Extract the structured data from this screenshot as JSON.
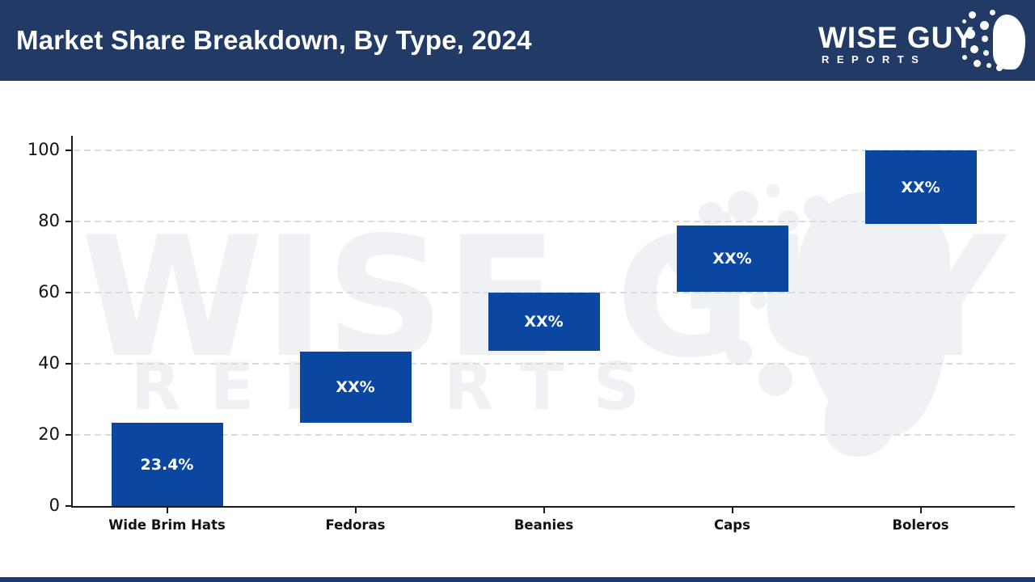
{
  "header": {
    "title": "Market Share Breakdown, By Type, 2024",
    "brand": {
      "line1": "WISE GUY",
      "line2": "REPORTS"
    }
  },
  "watermark": {
    "line1": "WISE GUY",
    "line2": "REPORTS"
  },
  "colors": {
    "header_bg": "#213A66",
    "footer_bg": "#213A66",
    "bar_blue": "#0B47A0",
    "grid_gray": "#DCDCDC",
    "axis_black": "#1A1A1A",
    "watermark_gray": "#F0F1F4",
    "bar_label_white": "#FFFFFF"
  },
  "chart_data": {
    "type": "bar",
    "subtype": "waterfall",
    "title": "Market Share Breakdown, By Type, 2024",
    "xlabel": "",
    "ylabel": "",
    "categories": [
      "Wide Brim Hats",
      "Fedoras",
      "Beanies",
      "Caps",
      "Boleros"
    ],
    "yticks": [
      0,
      20,
      40,
      60,
      80,
      100
    ],
    "ylim": [
      0,
      105
    ],
    "grid": "horizontal-dashed",
    "legend": "none",
    "series": [
      {
        "name": "Market Share",
        "segments": [
          {
            "category": "Wide Brim Hats",
            "start": 0,
            "end": 23.4,
            "label": "23.4%"
          },
          {
            "category": "Fedoras",
            "start": 23.4,
            "end": 43.5,
            "label": "XX%"
          },
          {
            "category": "Beanies",
            "start": 43.6,
            "end": 60.1,
            "label": "XX%"
          },
          {
            "category": "Caps",
            "start": 60.3,
            "end": 78.9,
            "label": "XX%"
          },
          {
            "category": "Boleros",
            "start": 79.3,
            "end": 100,
            "label": "XX%"
          }
        ]
      }
    ]
  }
}
